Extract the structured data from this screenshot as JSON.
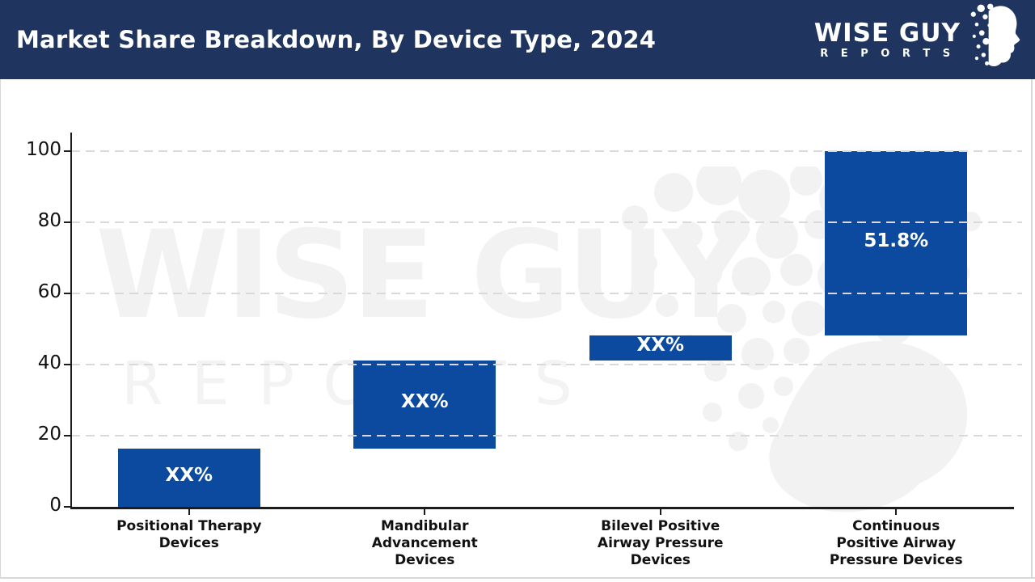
{
  "header": {
    "title": "Market Share Breakdown, By Device Type, 2024",
    "logo": {
      "line1": "WISE GUY",
      "line2": "R E P O R T S"
    }
  },
  "watermark": {
    "line1": "WISE GUY",
    "line2": "R E P O R T S"
  },
  "colors": {
    "header_bg": "#1f355f",
    "title_text": "#ffffff",
    "bar": "#0b4a9e",
    "bar_label": "#ffffff",
    "gridline": "#d9d9d9",
    "axis": "#1c1c1c",
    "watermark": "#f2f2f2",
    "frame": "#d8d8d8"
  },
  "chart_data": {
    "type": "bar",
    "subtype": "waterfall",
    "title": "Market Share Breakdown, By Device Type, 2024",
    "xlabel": "",
    "ylabel": "",
    "ylim": [
      0,
      100
    ],
    "yticks": [
      0,
      20,
      40,
      60,
      80,
      100
    ],
    "grid": "horizontal-dashed",
    "legend": "none",
    "categories": [
      "Positional Therapy Devices",
      "Mandibular Advancement Devices",
      "Bilevel Positive Airway Pressure Devices",
      "Continuous Positive Airway Pressure Devices"
    ],
    "category_lines": [
      [
        "Positional Therapy",
        "Devices"
      ],
      [
        "Mandibular",
        "Advancement",
        "Devices"
      ],
      [
        "Bilevel Positive",
        "Airway Pressure",
        "Devices"
      ],
      [
        "Continuous",
        "Positive Airway",
        "Pressure Devices"
      ]
    ],
    "values": [
      16.4,
      24.8,
      7.0,
      51.8
    ],
    "segments": [
      {
        "category": "Positional Therapy Devices",
        "start": 0,
        "end": 16.4,
        "label": "XX%"
      },
      {
        "category": "Mandibular Advancement Devices",
        "start": 16.4,
        "end": 41.2,
        "label": "XX%"
      },
      {
        "category": "Bilevel Positive Airway Pressure Devices",
        "start": 41.2,
        "end": 48.2,
        "label": "XX%"
      },
      {
        "category": "Continuous Positive Airway Pressure Devices",
        "start": 48.2,
        "end": 100,
        "label": "51.8%"
      }
    ]
  }
}
